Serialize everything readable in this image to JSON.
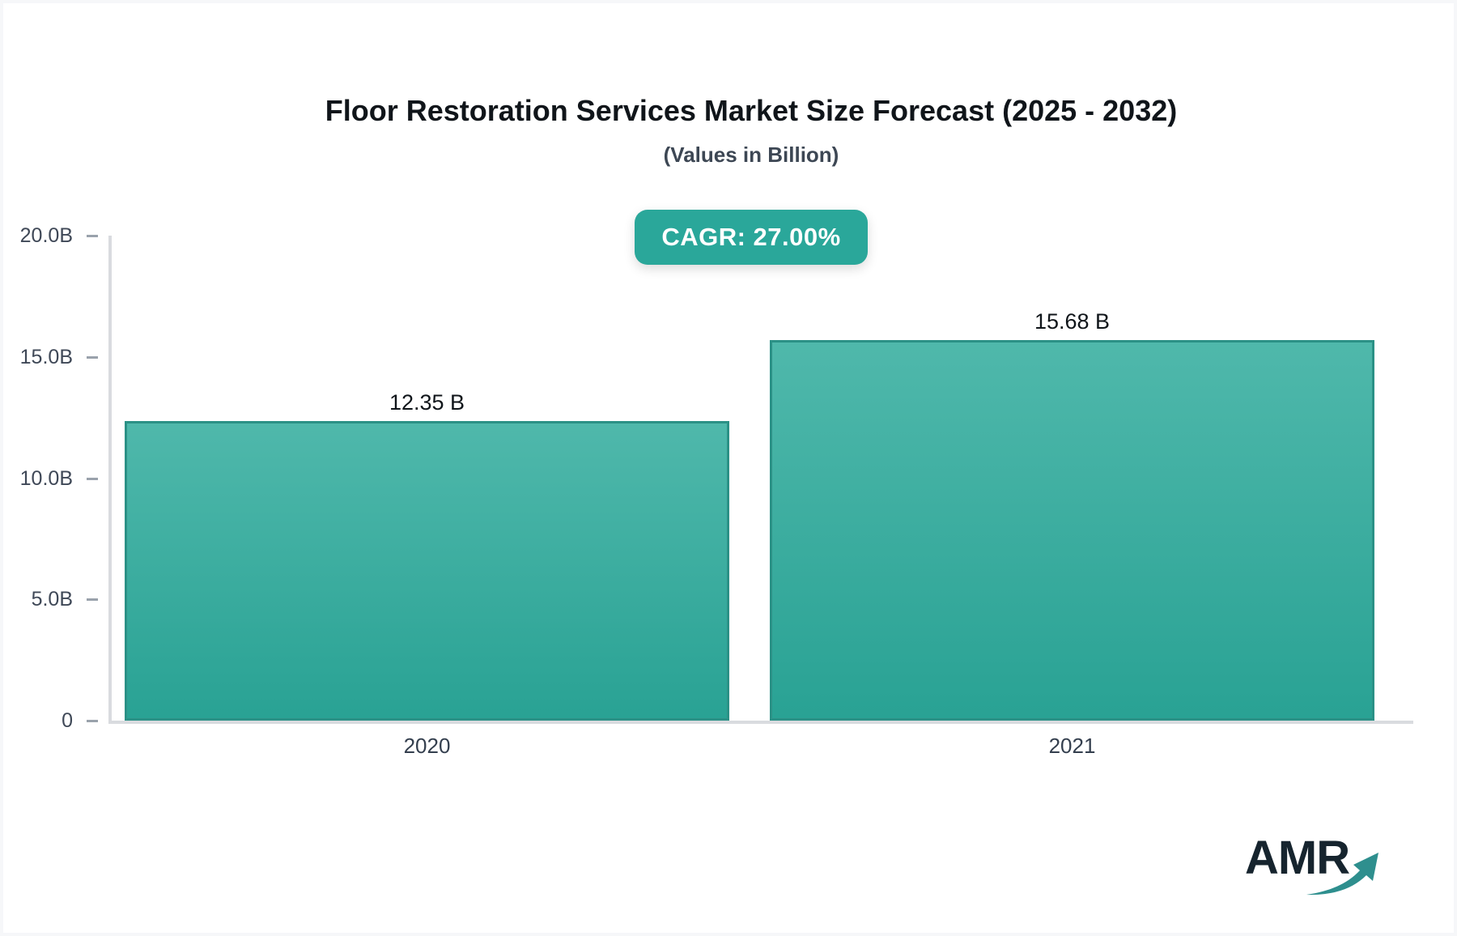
{
  "page": {
    "background": "#f6f7f9",
    "card_background": "#ffffff"
  },
  "header": {
    "title": "Floor Restoration Services Market Size Forecast (2025 - 2032)",
    "subtitle": "(Values in Billion)"
  },
  "badge": {
    "label": "CAGR: 27.00%",
    "background": "#2aa79a",
    "text_color": "#ffffff"
  },
  "chart_data": {
    "type": "bar",
    "title": "Floor Restoration Services Market Size Forecast (2025 - 2032)",
    "subtitle": "(Values in Billion)",
    "cagr_label": "CAGR: 27.00%",
    "categories": [
      "2020",
      "2021"
    ],
    "values": [
      12.35,
      15.68
    ],
    "value_labels": [
      "12.35 B",
      "15.68 B"
    ],
    "unit": "Billion",
    "ylim": [
      0,
      20
    ],
    "y_ticks": [
      {
        "value": 20,
        "label": "20.0B"
      },
      {
        "value": 15,
        "label": "15.0B"
      },
      {
        "value": 10,
        "label": "10.0B"
      },
      {
        "value": 5,
        "label": "5.0B"
      },
      {
        "value": 0,
        "label": "0"
      }
    ],
    "grid": false,
    "legend": "none",
    "bar_color_top": "#4fb8ab",
    "bar_color_bottom": "#29a294",
    "bar_border_color": "#2b9186",
    "axis_color": "#d9dbdf",
    "tick_color": "#9aa2ac"
  },
  "logo": {
    "text": "AMR",
    "text_color": "#16242e",
    "arrow_color": "#2e8f8e"
  }
}
